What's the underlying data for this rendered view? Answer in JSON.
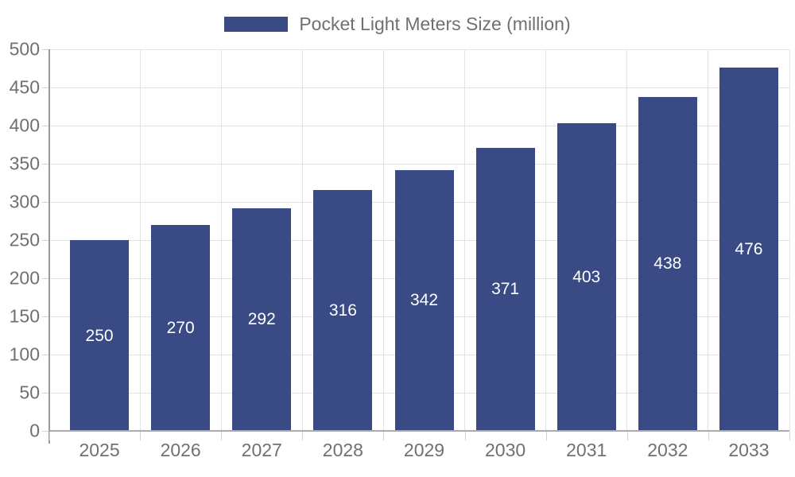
{
  "chart_data": {
    "type": "bar",
    "title": "Pocket Light Meters Size (million)",
    "legend": [
      "Pocket Light Meters Size (million)"
    ],
    "legend_position": "top-center",
    "categories": [
      "2025",
      "2026",
      "2027",
      "2028",
      "2029",
      "2030",
      "2031",
      "2032",
      "2033"
    ],
    "values": [
      250,
      270,
      292,
      316,
      342,
      371,
      403,
      438,
      476
    ],
    "xlabel": "",
    "ylabel": "",
    "ylim": [
      0,
      500
    ],
    "yticks": [
      0,
      50,
      100,
      150,
      200,
      250,
      300,
      350,
      400,
      450,
      500
    ],
    "grid": true,
    "value_labels": "inside-center",
    "colors": {
      "bar": "#3A4A85",
      "value_label": "#FFFFFF",
      "axis_text": "#707070",
      "grid_line": "#E3E3E3",
      "axis_line": "#A3A3A3",
      "background": "#FFFFFF"
    }
  }
}
